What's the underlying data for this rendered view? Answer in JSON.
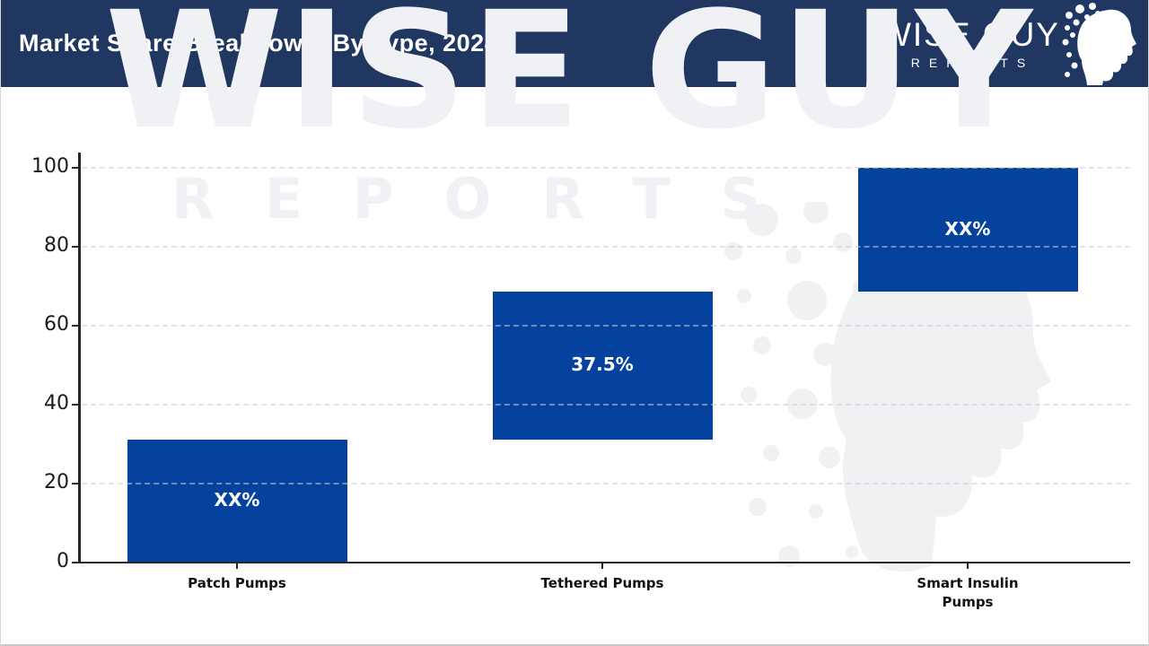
{
  "header": {
    "title": "Market Share Breakdown, By Type, 2024",
    "bg_color": "#203761",
    "logo": {
      "line1": "WISE GUY",
      "line2": "REPORTS"
    }
  },
  "watermark": {
    "line1": "WISE GUY",
    "line2": "REPORTS"
  },
  "chart_data": {
    "type": "bar",
    "variant": "waterfall",
    "title": "Market Share Breakdown, By Type, 2024",
    "categories": [
      "Patch Pumps",
      "Tethered Pumps",
      "Smart Insulin Pumps"
    ],
    "segments": [
      {
        "category": "Patch Pumps",
        "start": 0,
        "end": 31.25,
        "label": "XX%"
      },
      {
        "category": "Tethered Pumps",
        "start": 31.25,
        "end": 68.75,
        "label": "37.5%"
      },
      {
        "category": "Smart Insulin Pumps",
        "start": 68.75,
        "end": 100,
        "label": "XX%"
      }
    ],
    "yticks": [
      0,
      20,
      40,
      60,
      80,
      100
    ],
    "ylim": [
      0,
      104
    ],
    "xlabel": "",
    "ylabel": "",
    "grid": {
      "visible": true,
      "style": "dashed",
      "color": "#dcdcdc",
      "on_top": true
    },
    "bar_color": "#05429e",
    "bar_label_color": "#ffffff",
    "axis_color": "#262626",
    "legend": "none"
  }
}
